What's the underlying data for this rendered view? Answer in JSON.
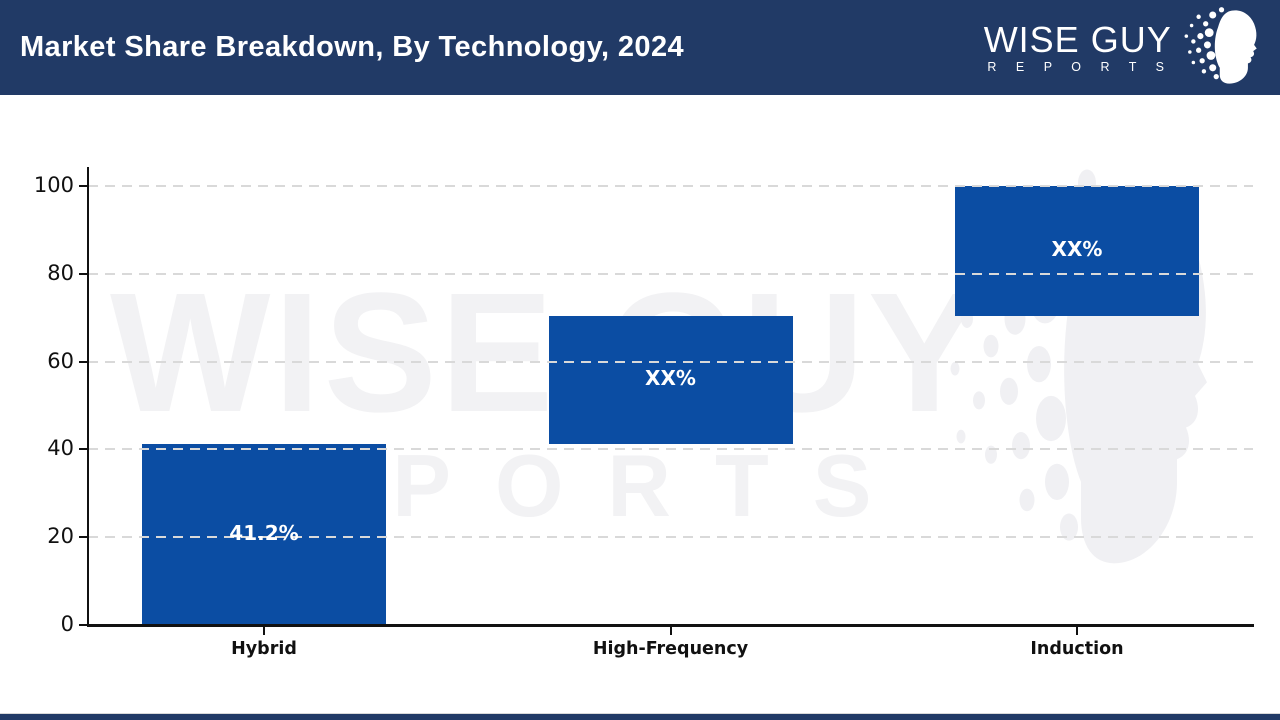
{
  "header": {
    "title": "Market Share Breakdown, By Technology, 2024",
    "logo": {
      "line1": "WISE GUY",
      "line2": "R E P O R T S"
    }
  },
  "watermark": {
    "line1": "WISE GUY",
    "line2": "REPORTS"
  },
  "colors": {
    "header_bg": "#213a66",
    "bar": "#0b4da3",
    "gridline": "#d9d9d9",
    "axis": "#111111",
    "bar_label": "#ffffff",
    "watermark": "#f2f2f4"
  },
  "chart_data": {
    "type": "bar",
    "subtype": "waterfall",
    "title": "Market Share Breakdown, By Technology, 2024",
    "categories": [
      "Hybrid",
      "High-Frequency",
      "Induction"
    ],
    "segments": [
      {
        "category": "Hybrid",
        "start": 0,
        "end": 41.2,
        "label": "41.2%"
      },
      {
        "category": "High-Frequency",
        "start": 41.2,
        "end": 70.4,
        "label": "XX%"
      },
      {
        "category": "Induction",
        "start": 70.4,
        "end": 100,
        "label": "XX%"
      }
    ],
    "xlabel": "",
    "ylabel": "",
    "ylim": [
      0,
      100
    ],
    "yticks": [
      0,
      20,
      40,
      60,
      80,
      100
    ],
    "grid": "horizontal-dashed",
    "legend": "none"
  }
}
